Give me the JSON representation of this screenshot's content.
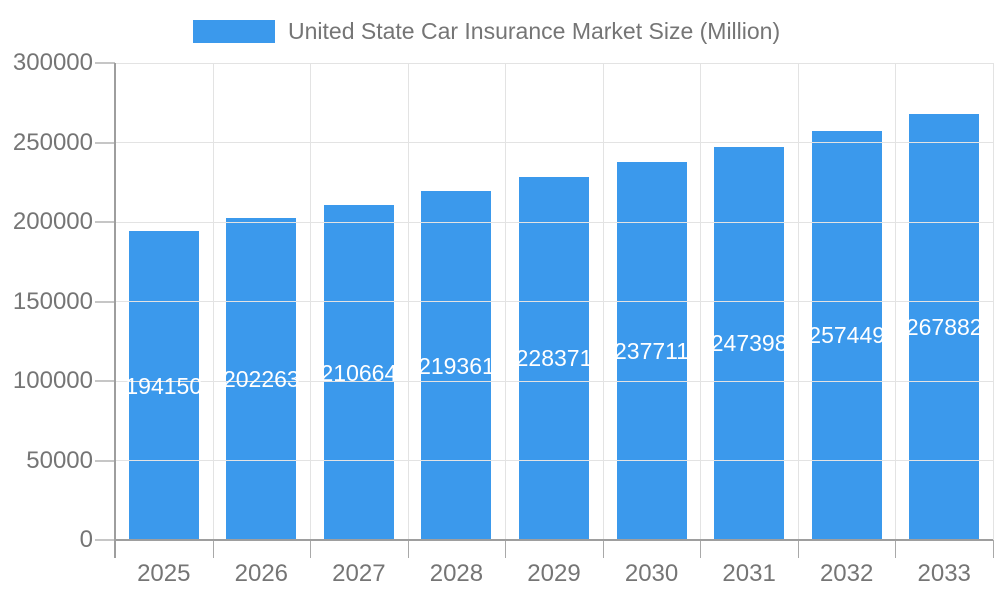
{
  "legend": {
    "label": "United State Car Insurance Market Size (Million)",
    "swatch_color": "#3b99ec"
  },
  "chart_data": {
    "type": "bar",
    "title": "United State Car Insurance Market Size (Million)",
    "series_name": "United State Car Insurance Market Size (Million)",
    "categories": [
      "2025",
      "2026",
      "2027",
      "2028",
      "2029",
      "2030",
      "2031",
      "2032",
      "2033"
    ],
    "values": [
      194150,
      202263,
      210664,
      219361,
      228371,
      237711,
      247398,
      257449,
      267882
    ],
    "bar_labels": [
      "194150",
      "202263",
      "210664",
      "219361",
      "228371",
      "237711",
      "247398",
      "257449",
      "267882"
    ],
    "xlabel": "",
    "ylabel": "",
    "ylim": [
      0,
      300000
    ],
    "yticks": [
      0,
      50000,
      100000,
      150000,
      200000,
      250000,
      300000
    ],
    "ytick_labels": [
      "0",
      "50000",
      "100000",
      "150000",
      "200000",
      "250000",
      "300000"
    ],
    "grid": true,
    "legend_position": "top",
    "colors": {
      "bar": "#3b99ec",
      "bar_label_text": "#ffffff",
      "axis_text": "#757575",
      "axis_line": "#9e9e9e",
      "gridline": "#e3e3e3",
      "background": "#ffffff"
    }
  }
}
